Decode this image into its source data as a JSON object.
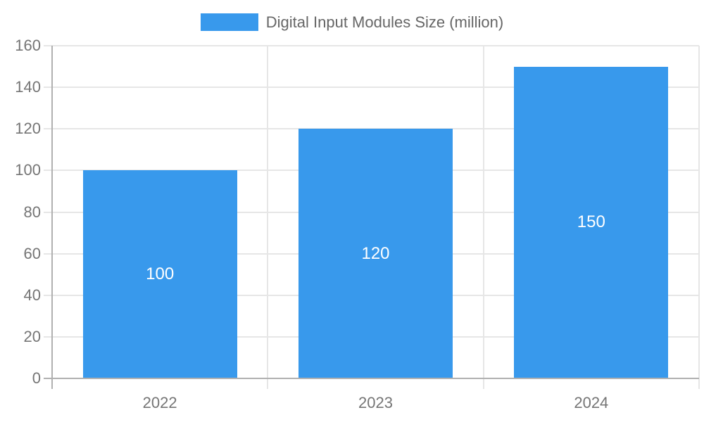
{
  "chart_data": {
    "type": "bar",
    "title": "Digital Input Modules Size (million)",
    "legend_label": "Digital Input Modules Size (million)",
    "legend_position": "top-center",
    "categories": [
      "2022",
      "2023",
      "2024"
    ],
    "values": [
      100,
      120,
      150
    ],
    "xlabel": "",
    "ylabel": "",
    "ylim": [
      0,
      160
    ],
    "yticks": [
      0,
      20,
      40,
      60,
      80,
      100,
      120,
      140,
      160
    ],
    "grid": true,
    "data_label_position": "inside-center",
    "colors": {
      "bar": "#3899EC",
      "grid": "#E6E6E6",
      "axis": "#B0B0B0",
      "tick_text": "#757575",
      "legend_text": "#666666",
      "data_label": "#FFFFFF",
      "background": "#FFFFFF"
    }
  }
}
